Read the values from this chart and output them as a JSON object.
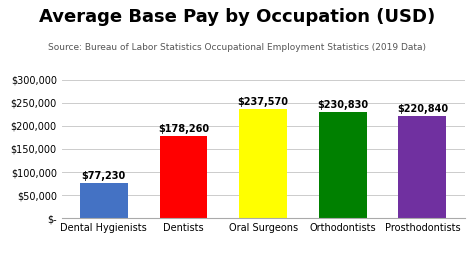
{
  "title": "Average Base Pay by Occupation (USD)",
  "subtitle": "Source: Bureau of Labor Statistics Occupational Employment Statistics (2019 Data)",
  "categories": [
    "Dental Hygienists",
    "Dentists",
    "Oral Surgeons",
    "Orthodontists",
    "Prosthodontists"
  ],
  "values": [
    77230,
    178260,
    237570,
    230830,
    220840
  ],
  "bar_colors": [
    "#4472C4",
    "#FF0000",
    "#FFFF00",
    "#008000",
    "#7030A0"
  ],
  "labels": [
    "$77,230",
    "$178,260",
    "$237,570",
    "$230,830",
    "$220,840"
  ],
  "ylim": [
    0,
    300000
  ],
  "yticks": [
    0,
    50000,
    100000,
    150000,
    200000,
    250000,
    300000
  ],
  "ytick_labels": [
    "$-",
    "$50,000",
    "$100,000",
    "$150,000",
    "$200,000",
    "$250,000",
    "$300,000"
  ],
  "background_color": "#FFFFFF",
  "title_fontsize": 13,
  "subtitle_fontsize": 6.5,
  "label_fontsize": 7,
  "tick_fontsize": 7,
  "xtick_fontsize": 7,
  "grid_color": "#CCCCCC"
}
